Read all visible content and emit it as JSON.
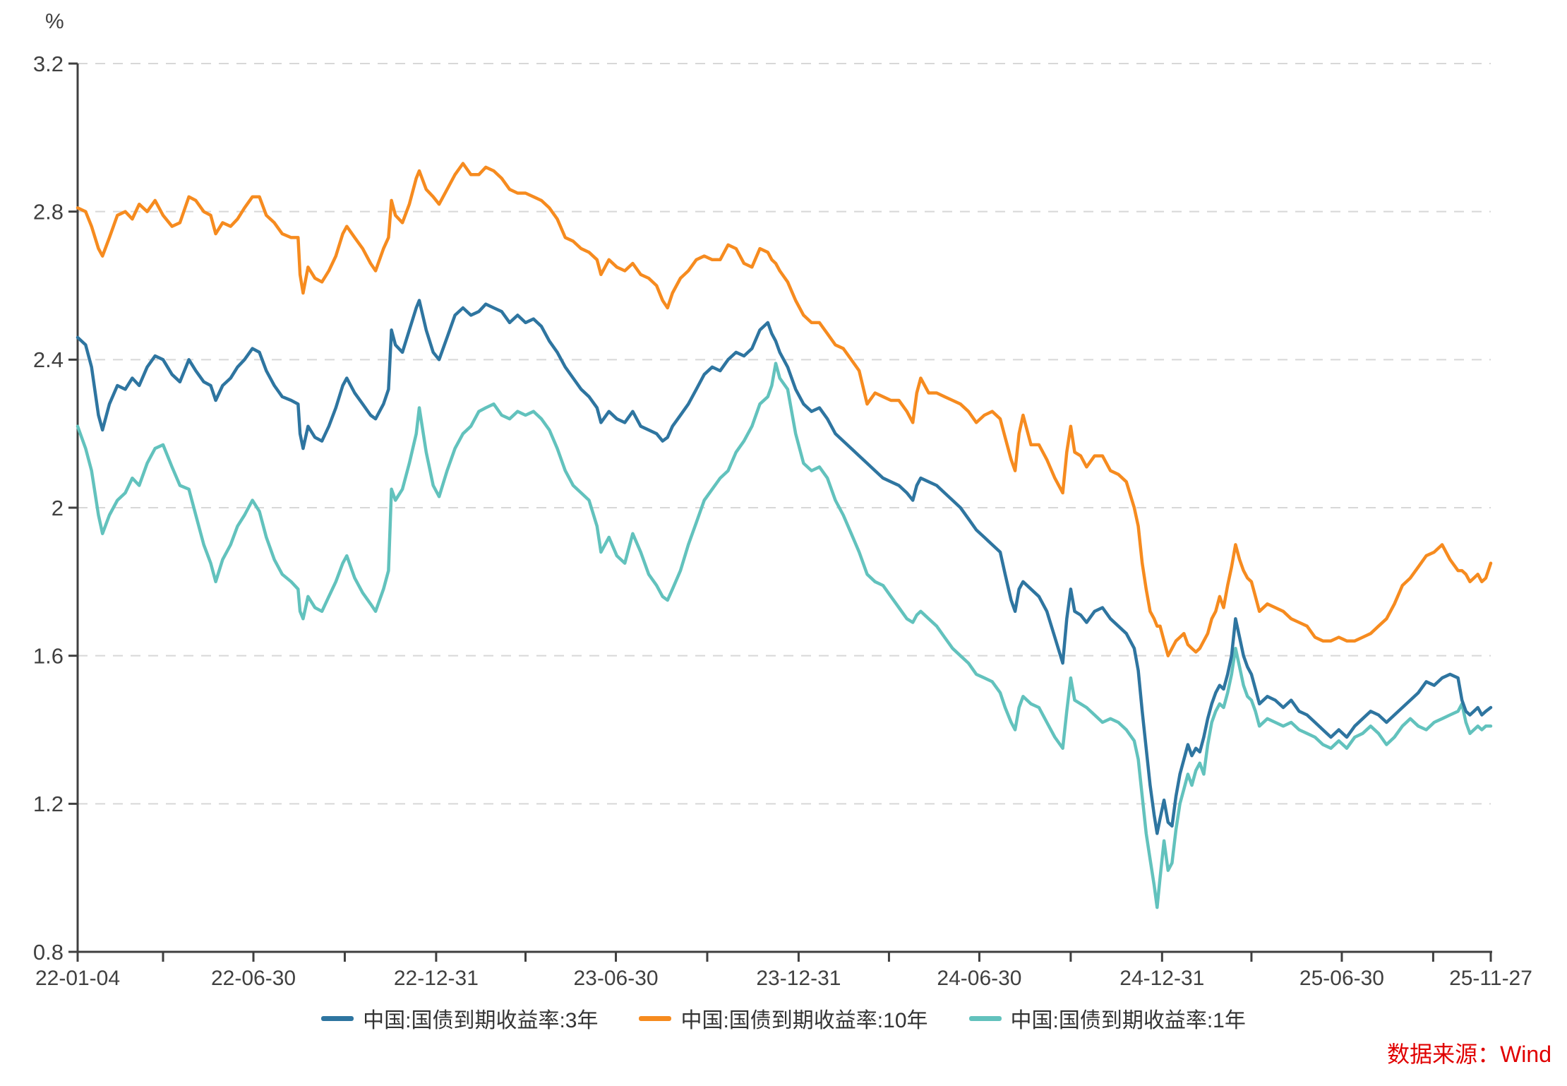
{
  "chart_data": {
    "type": "line",
    "title": "",
    "y_unit": "%",
    "ylim": [
      0.8,
      3.2
    ],
    "y_tick_step": 0.4,
    "y_tick_labels": [
      "3.2",
      "2.8",
      "2.4",
      "2",
      "1.6",
      "1.2",
      "0.8"
    ],
    "grid": "horizontal-dashed",
    "legend_position": "bottom-center",
    "source_note": "数据来源：Wind",
    "x_start_label": "22-01-04",
    "x_end_label": "25-11-27",
    "x_max_day": 1423,
    "x_ticks": [
      {
        "label": "22-01-04",
        "day": 0
      },
      {
        "label": "22-06-30",
        "day": 177
      },
      {
        "label": "22-12-31",
        "day": 361
      },
      {
        "label": "23-06-30",
        "day": 542
      },
      {
        "label": "23-12-31",
        "day": 726
      },
      {
        "label": "24-06-30",
        "day": 908
      },
      {
        "label": "24-12-31",
        "day": 1092
      },
      {
        "label": "25-06-30",
        "day": 1273
      },
      {
        "label": "25-11-27",
        "day": 1423
      }
    ],
    "x_minor_tick_days": [
      86,
      269,
      451,
      634,
      817,
      1000,
      1182,
      1365
    ],
    "days": [
      0,
      8,
      14,
      21,
      25,
      32,
      40,
      48,
      55,
      62,
      70,
      78,
      86,
      95,
      103,
      112,
      119,
      127,
      134,
      139,
      146,
      154,
      161,
      168,
      176,
      183,
      190,
      198,
      206,
      215,
      222,
      224,
      227,
      232,
      239,
      246,
      253,
      260,
      267,
      271,
      279,
      287,
      295,
      300,
      308,
      313,
      316,
      320,
      327,
      334,
      341,
      344,
      351,
      358,
      364,
      372,
      380,
      388,
      396,
      404,
      411,
      419,
      427,
      435,
      443,
      451,
      459,
      467,
      475,
      483,
      491,
      499,
      507,
      515,
      523,
      527,
      535,
      543,
      551,
      559,
      567,
      575,
      583,
      589,
      594,
      599,
      607,
      615,
      623,
      631,
      639,
      647,
      655,
      663,
      671,
      679,
      687,
      695,
      699,
      703,
      707,
      715,
      723,
      731,
      739,
      747,
      755,
      763,
      771,
      779,
      787,
      795,
      803,
      811,
      819,
      827,
      835,
      841,
      845,
      849,
      857,
      865,
      873,
      881,
      889,
      897,
      905,
      913,
      921,
      929,
      934,
      940,
      944,
      948,
      952,
      960,
      968,
      976,
      984,
      992,
      996,
      1000,
      1004,
      1010,
      1016,
      1024,
      1032,
      1040,
      1048,
      1056,
      1064,
      1068,
      1072,
      1076,
      1080,
      1084,
      1087,
      1090,
      1094,
      1098,
      1102,
      1106,
      1110,
      1114,
      1118,
      1122,
      1126,
      1130,
      1134,
      1138,
      1142,
      1146,
      1150,
      1154,
      1158,
      1162,
      1166,
      1170,
      1174,
      1178,
      1182,
      1186,
      1190,
      1198,
      1206,
      1214,
      1222,
      1230,
      1238,
      1246,
      1254,
      1262,
      1270,
      1278,
      1286,
      1294,
      1302,
      1310,
      1318,
      1326,
      1334,
      1342,
      1350,
      1358,
      1366,
      1374,
      1382,
      1390,
      1394,
      1398,
      1402,
      1406,
      1410,
      1414,
      1418,
      1423
    ],
    "series": [
      {
        "name": "中国:国债到期收益率:3年",
        "color": "#2E75A0",
        "values": [
          2.46,
          2.44,
          2.38,
          2.25,
          2.21,
          2.28,
          2.33,
          2.32,
          2.35,
          2.33,
          2.38,
          2.41,
          2.4,
          2.36,
          2.34,
          2.4,
          2.37,
          2.34,
          2.33,
          2.29,
          2.33,
          2.35,
          2.38,
          2.4,
          2.43,
          2.42,
          2.37,
          2.33,
          2.3,
          2.29,
          2.28,
          2.2,
          2.16,
          2.22,
          2.19,
          2.18,
          2.22,
          2.27,
          2.33,
          2.35,
          2.31,
          2.28,
          2.25,
          2.24,
          2.28,
          2.32,
          2.48,
          2.44,
          2.42,
          2.48,
          2.54,
          2.56,
          2.48,
          2.42,
          2.4,
          2.46,
          2.52,
          2.54,
          2.52,
          2.53,
          2.55,
          2.54,
          2.53,
          2.5,
          2.52,
          2.5,
          2.51,
          2.49,
          2.45,
          2.42,
          2.38,
          2.35,
          2.32,
          2.3,
          2.27,
          2.23,
          2.26,
          2.24,
          2.23,
          2.26,
          2.22,
          2.21,
          2.2,
          2.18,
          2.19,
          2.22,
          2.25,
          2.28,
          2.32,
          2.36,
          2.38,
          2.37,
          2.4,
          2.42,
          2.41,
          2.43,
          2.48,
          2.5,
          2.47,
          2.45,
          2.42,
          2.38,
          2.32,
          2.28,
          2.26,
          2.27,
          2.24,
          2.2,
          2.18,
          2.16,
          2.14,
          2.12,
          2.1,
          2.08,
          2.07,
          2.06,
          2.04,
          2.02,
          2.06,
          2.08,
          2.07,
          2.06,
          2.04,
          2.02,
          2.0,
          1.97,
          1.94,
          1.92,
          1.9,
          1.88,
          1.82,
          1.75,
          1.72,
          1.78,
          1.8,
          1.78,
          1.76,
          1.72,
          1.65,
          1.58,
          1.7,
          1.78,
          1.72,
          1.71,
          1.69,
          1.72,
          1.73,
          1.7,
          1.68,
          1.66,
          1.62,
          1.56,
          1.45,
          1.35,
          1.25,
          1.17,
          1.12,
          1.16,
          1.21,
          1.15,
          1.14,
          1.22,
          1.28,
          1.32,
          1.36,
          1.33,
          1.35,
          1.34,
          1.38,
          1.43,
          1.47,
          1.5,
          1.52,
          1.51,
          1.55,
          1.6,
          1.7,
          1.65,
          1.6,
          1.57,
          1.55,
          1.51,
          1.47,
          1.49,
          1.48,
          1.46,
          1.48,
          1.45,
          1.44,
          1.42,
          1.4,
          1.38,
          1.4,
          1.38,
          1.41,
          1.43,
          1.45,
          1.44,
          1.42,
          1.44,
          1.46,
          1.48,
          1.5,
          1.53,
          1.52,
          1.54,
          1.55,
          1.54,
          1.48,
          1.45,
          1.44,
          1.45,
          1.46,
          1.44,
          1.45,
          1.46
        ]
      },
      {
        "name": "中国:国债到期收益率:10年",
        "color": "#F68B1F",
        "values": [
          2.81,
          2.8,
          2.76,
          2.7,
          2.68,
          2.73,
          2.79,
          2.8,
          2.78,
          2.82,
          2.8,
          2.83,
          2.79,
          2.76,
          2.77,
          2.84,
          2.83,
          2.8,
          2.79,
          2.74,
          2.77,
          2.76,
          2.78,
          2.81,
          2.84,
          2.84,
          2.79,
          2.77,
          2.74,
          2.73,
          2.73,
          2.63,
          2.58,
          2.65,
          2.62,
          2.61,
          2.64,
          2.68,
          2.74,
          2.76,
          2.73,
          2.7,
          2.66,
          2.64,
          2.7,
          2.73,
          2.83,
          2.79,
          2.77,
          2.82,
          2.89,
          2.91,
          2.86,
          2.84,
          2.82,
          2.86,
          2.9,
          2.93,
          2.9,
          2.9,
          2.92,
          2.91,
          2.89,
          2.86,
          2.85,
          2.85,
          2.84,
          2.83,
          2.81,
          2.78,
          2.73,
          2.72,
          2.7,
          2.69,
          2.67,
          2.63,
          2.67,
          2.65,
          2.64,
          2.66,
          2.63,
          2.62,
          2.6,
          2.56,
          2.54,
          2.58,
          2.62,
          2.64,
          2.67,
          2.68,
          2.67,
          2.67,
          2.71,
          2.7,
          2.66,
          2.65,
          2.7,
          2.69,
          2.67,
          2.66,
          2.64,
          2.61,
          2.56,
          2.52,
          2.5,
          2.5,
          2.47,
          2.44,
          2.43,
          2.4,
          2.37,
          2.28,
          2.31,
          2.3,
          2.29,
          2.29,
          2.26,
          2.23,
          2.31,
          2.35,
          2.31,
          2.31,
          2.3,
          2.29,
          2.28,
          2.26,
          2.23,
          2.25,
          2.26,
          2.24,
          2.19,
          2.13,
          2.1,
          2.2,
          2.25,
          2.17,
          2.17,
          2.13,
          2.08,
          2.04,
          2.15,
          2.22,
          2.15,
          2.14,
          2.11,
          2.14,
          2.14,
          2.1,
          2.09,
          2.07,
          2.0,
          1.95,
          1.85,
          1.78,
          1.72,
          1.7,
          1.68,
          1.68,
          1.64,
          1.6,
          1.62,
          1.64,
          1.65,
          1.66,
          1.63,
          1.62,
          1.61,
          1.62,
          1.64,
          1.66,
          1.7,
          1.72,
          1.76,
          1.73,
          1.79,
          1.84,
          1.9,
          1.86,
          1.83,
          1.81,
          1.8,
          1.76,
          1.72,
          1.74,
          1.73,
          1.72,
          1.7,
          1.69,
          1.68,
          1.65,
          1.64,
          1.64,
          1.65,
          1.64,
          1.64,
          1.65,
          1.66,
          1.68,
          1.7,
          1.74,
          1.79,
          1.81,
          1.84,
          1.87,
          1.88,
          1.9,
          1.86,
          1.83,
          1.83,
          1.82,
          1.8,
          1.81,
          1.82,
          1.8,
          1.81,
          1.85
        ]
      },
      {
        "name": "中国:国债到期收益率:1年",
        "color": "#62C2BD",
        "values": [
          2.22,
          2.16,
          2.1,
          1.98,
          1.93,
          1.98,
          2.02,
          2.04,
          2.08,
          2.06,
          2.12,
          2.16,
          2.17,
          2.11,
          2.06,
          2.05,
          1.98,
          1.9,
          1.85,
          1.8,
          1.86,
          1.9,
          1.95,
          1.98,
          2.02,
          1.99,
          1.92,
          1.86,
          1.82,
          1.8,
          1.78,
          1.72,
          1.7,
          1.76,
          1.73,
          1.72,
          1.76,
          1.8,
          1.85,
          1.87,
          1.81,
          1.77,
          1.74,
          1.72,
          1.78,
          1.83,
          2.05,
          2.02,
          2.05,
          2.12,
          2.2,
          2.27,
          2.15,
          2.06,
          2.03,
          2.1,
          2.16,
          2.2,
          2.22,
          2.26,
          2.27,
          2.28,
          2.25,
          2.24,
          2.26,
          2.25,
          2.26,
          2.24,
          2.21,
          2.16,
          2.1,
          2.06,
          2.04,
          2.02,
          1.95,
          1.88,
          1.92,
          1.87,
          1.85,
          1.93,
          1.88,
          1.82,
          1.79,
          1.76,
          1.75,
          1.78,
          1.83,
          1.9,
          1.96,
          2.02,
          2.05,
          2.08,
          2.1,
          2.15,
          2.18,
          2.22,
          2.28,
          2.3,
          2.33,
          2.39,
          2.35,
          2.32,
          2.2,
          2.12,
          2.1,
          2.11,
          2.08,
          2.02,
          1.98,
          1.93,
          1.88,
          1.82,
          1.8,
          1.79,
          1.76,
          1.73,
          1.7,
          1.69,
          1.71,
          1.72,
          1.7,
          1.68,
          1.65,
          1.62,
          1.6,
          1.58,
          1.55,
          1.54,
          1.53,
          1.5,
          1.46,
          1.42,
          1.4,
          1.46,
          1.49,
          1.47,
          1.46,
          1.42,
          1.38,
          1.35,
          1.45,
          1.54,
          1.48,
          1.47,
          1.46,
          1.44,
          1.42,
          1.43,
          1.42,
          1.4,
          1.37,
          1.32,
          1.22,
          1.12,
          1.05,
          0.98,
          0.92,
          1.0,
          1.1,
          1.02,
          1.04,
          1.13,
          1.2,
          1.24,
          1.28,
          1.25,
          1.29,
          1.31,
          1.28,
          1.36,
          1.42,
          1.45,
          1.47,
          1.46,
          1.5,
          1.55,
          1.62,
          1.57,
          1.52,
          1.49,
          1.48,
          1.45,
          1.41,
          1.43,
          1.42,
          1.41,
          1.42,
          1.4,
          1.39,
          1.38,
          1.36,
          1.35,
          1.37,
          1.35,
          1.38,
          1.39,
          1.41,
          1.39,
          1.36,
          1.38,
          1.41,
          1.43,
          1.41,
          1.4,
          1.42,
          1.43,
          1.44,
          1.45,
          1.47,
          1.42,
          1.39,
          1.4,
          1.41,
          1.4,
          1.41,
          1.41
        ]
      }
    ],
    "style": {
      "axis_color": "#3F3F3F",
      "grid_color": "#D8D8D8",
      "label_color": "#404040",
      "source_color": "#E00000"
    }
  }
}
